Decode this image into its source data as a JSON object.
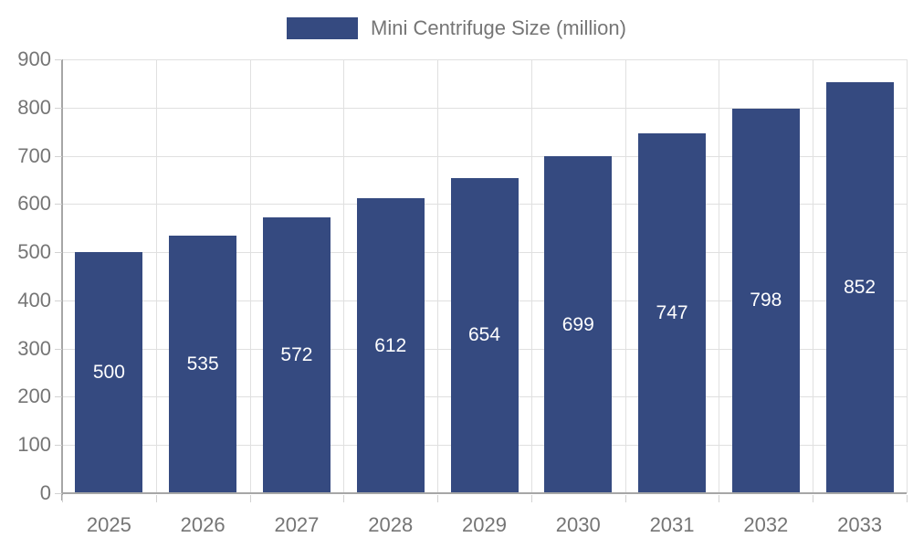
{
  "chart_data": {
    "type": "bar",
    "title": "Mini Centrifuge Size (million)",
    "categories": [
      "2025",
      "2026",
      "2027",
      "2028",
      "2029",
      "2030",
      "2031",
      "2032",
      "2033"
    ],
    "values": [
      500,
      535,
      572,
      612,
      654,
      699,
      747,
      798,
      852
    ],
    "value_labels": [
      "500",
      "535",
      "572",
      "612",
      "654",
      "699",
      "747",
      "798",
      "852"
    ],
    "xlabel": "",
    "ylabel": "",
    "ylim": [
      0,
      900
    ],
    "ytick_step": 100,
    "ytick_labels": [
      "0",
      "100",
      "200",
      "300",
      "400",
      "500",
      "600",
      "700",
      "800",
      "900"
    ],
    "grid": "on",
    "legend_position": "top",
    "colors": {
      "bar": "#354a80",
      "value_label": "#ffffff",
      "axis_text": "#757575",
      "legend_text": "#757575",
      "gridline": "#e0e0e0",
      "tick": "#d2d2d2",
      "axis_line": "#a6a6a6"
    }
  }
}
